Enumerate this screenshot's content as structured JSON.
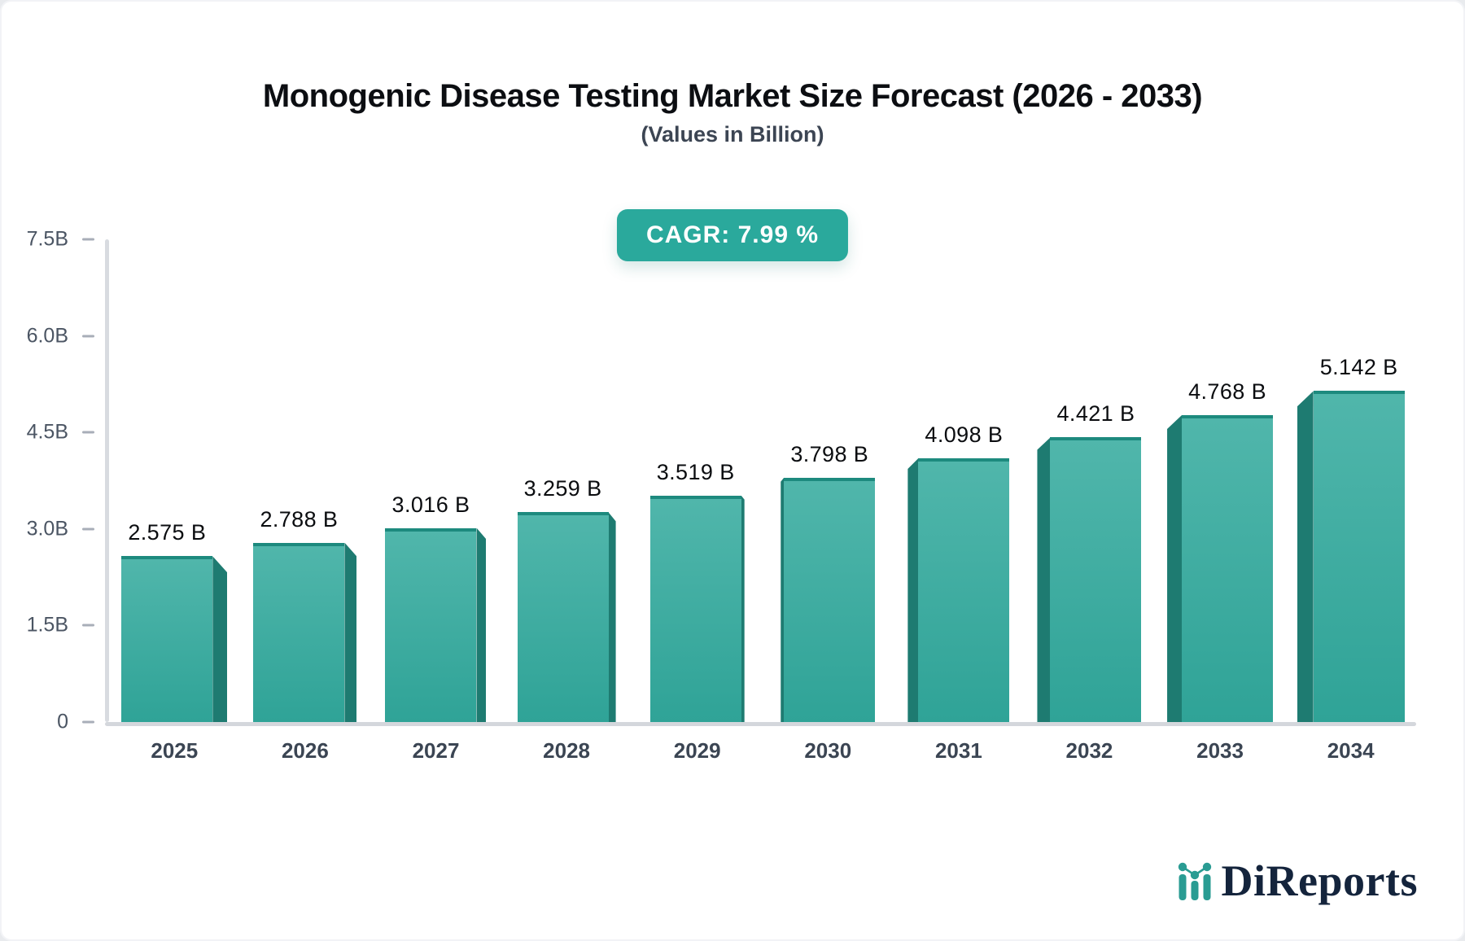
{
  "header": {
    "title": "Monogenic Disease Testing Market Size Forecast (2026 - 2033)",
    "subtitle": "(Values in Billion)"
  },
  "badge": {
    "label": "CAGR: 7.99 %"
  },
  "chart_data": {
    "type": "bar",
    "title": "Monogenic Disease Testing Market Size Forecast (2026 - 2033)",
    "subtitle": "(Values in Billion)",
    "cagr_percent": 7.99,
    "categories": [
      "2025",
      "2026",
      "2027",
      "2028",
      "2029",
      "2030",
      "2031",
      "2032",
      "2033",
      "2034"
    ],
    "values": [
      2.575,
      2.788,
      3.016,
      3.259,
      3.519,
      3.798,
      4.098,
      4.421,
      4.768,
      5.142
    ],
    "value_labels": [
      "2.575 B",
      "2.788 B",
      "3.016 B",
      "3.259 B",
      "3.519 B",
      "3.798 B",
      "4.098 B",
      "4.421 B",
      "4.768 B",
      "5.142 B"
    ],
    "xlabel": "",
    "ylabel": "",
    "ylim": [
      0,
      7.5
    ],
    "yticks": [
      {
        "value": 7.5,
        "label": "7.5B"
      },
      {
        "value": 6.0,
        "label": "6.0B"
      },
      {
        "value": 4.5,
        "label": "4.5B"
      },
      {
        "value": 3.0,
        "label": "3.0B"
      },
      {
        "value": 1.5,
        "label": "1.5B"
      },
      {
        "value": 0,
        "label": "0"
      }
    ],
    "grid": false,
    "legend": false,
    "colors": {
      "accent": "#2aa99c",
      "bar_gradient_top": "#50b6ab",
      "bar_gradient_bottom": "#2fa397",
      "bar_top_edge": "#1d8a7e",
      "bar_side_face": "#1e7b71",
      "axis_line": "#d6d9de",
      "tick_text": "#4b5563",
      "category_text": "#3b4553"
    }
  },
  "logo": {
    "text": "DiReports",
    "icon": "bar-chart-dots-icon"
  }
}
